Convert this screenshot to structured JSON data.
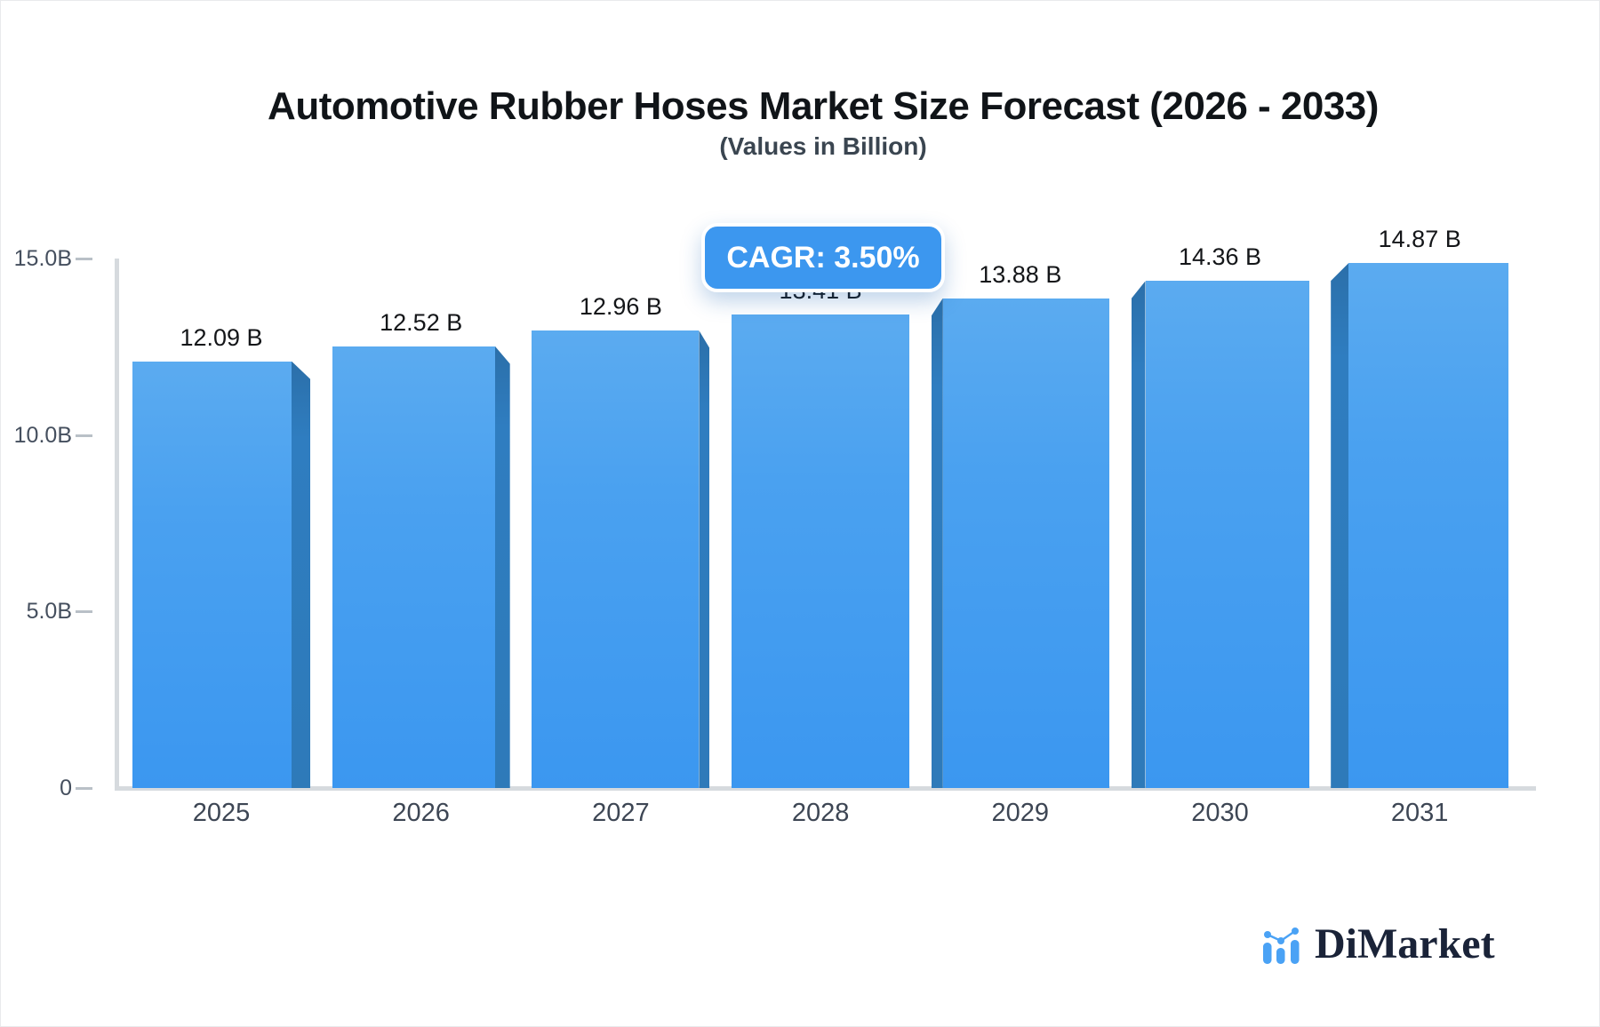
{
  "header": {
    "title": "Automotive Rubber Hoses Market Size Forecast (2026 - 2033)",
    "subtitle": "(Values in Billion)"
  },
  "badge": {
    "label": "CAGR: 3.50%",
    "color": "#3c97ef"
  },
  "chart_data": {
    "type": "bar",
    "title": "Automotive Rubber Hoses Market Size Forecast (2026 - 2033)",
    "subtitle": "(Values in Billion)",
    "categories": [
      "2025",
      "2026",
      "2027",
      "2028",
      "2029",
      "2030",
      "2031"
    ],
    "values": [
      12.09,
      12.52,
      12.96,
      13.41,
      13.88,
      14.36,
      14.87
    ],
    "value_labels": [
      "12.09 B",
      "12.52 B",
      "12.96 B",
      "13.41 B",
      "13.88 B",
      "14.36 B",
      "14.87 B"
    ],
    "y_ticks": [
      {
        "label": "15.0B",
        "value": 15.0
      },
      {
        "label": "10.0B",
        "value": 10.0
      },
      {
        "label": "5.0B",
        "value": 5.0
      },
      {
        "label": "0",
        "value": 0
      }
    ],
    "ylim": [
      0,
      15.0
    ],
    "annotation": "CAGR: 3.50%",
    "legend": null,
    "grid": false,
    "bar_color_top": "#5babf0",
    "bar_color_bottom": "#3b97f0",
    "bar_side_color": "#2e7ab9",
    "axis_color": "#d6dade"
  },
  "footer": {
    "logo_text": "DiMarket",
    "logo_icon": "bar-line-chart-icon"
  }
}
